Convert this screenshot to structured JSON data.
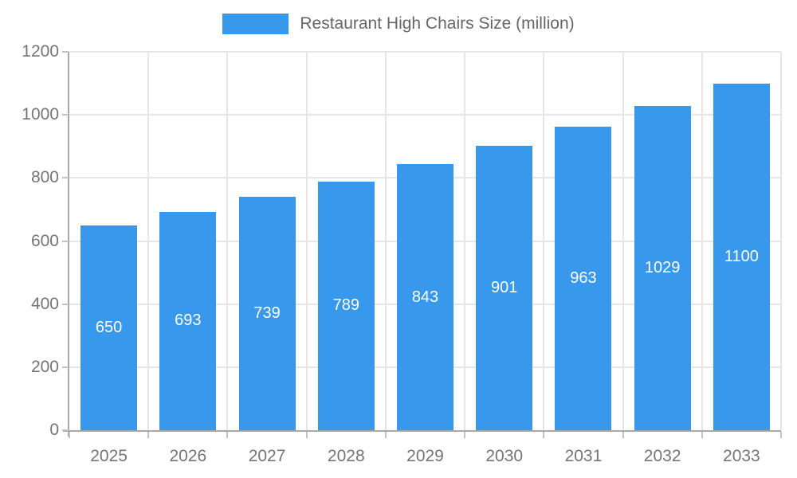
{
  "chart_data": {
    "type": "bar",
    "legend": "Restaurant High Chairs Size (million)",
    "categories": [
      "2025",
      "2026",
      "2027",
      "2028",
      "2029",
      "2030",
      "2031",
      "2032",
      "2033"
    ],
    "values": [
      650,
      693,
      739,
      789,
      843,
      901,
      963,
      1029,
      1100
    ],
    "xlabel": "",
    "ylabel": "",
    "ylim": [
      0,
      1200
    ],
    "yticks": [
      0,
      200,
      400,
      600,
      800,
      1000,
      1200
    ],
    "grid": true,
    "legend_position": "top",
    "value_labels": "inside-center",
    "colors": {
      "bar": "#3898EC",
      "value_label": "#FFFFFF",
      "axis": "#A8A8A8",
      "tick": "#C2C2C2",
      "grid": "#E6E6E6",
      "tick_label": "#757575",
      "legend_text": "#666666",
      "background": "#FFFFFF"
    }
  }
}
